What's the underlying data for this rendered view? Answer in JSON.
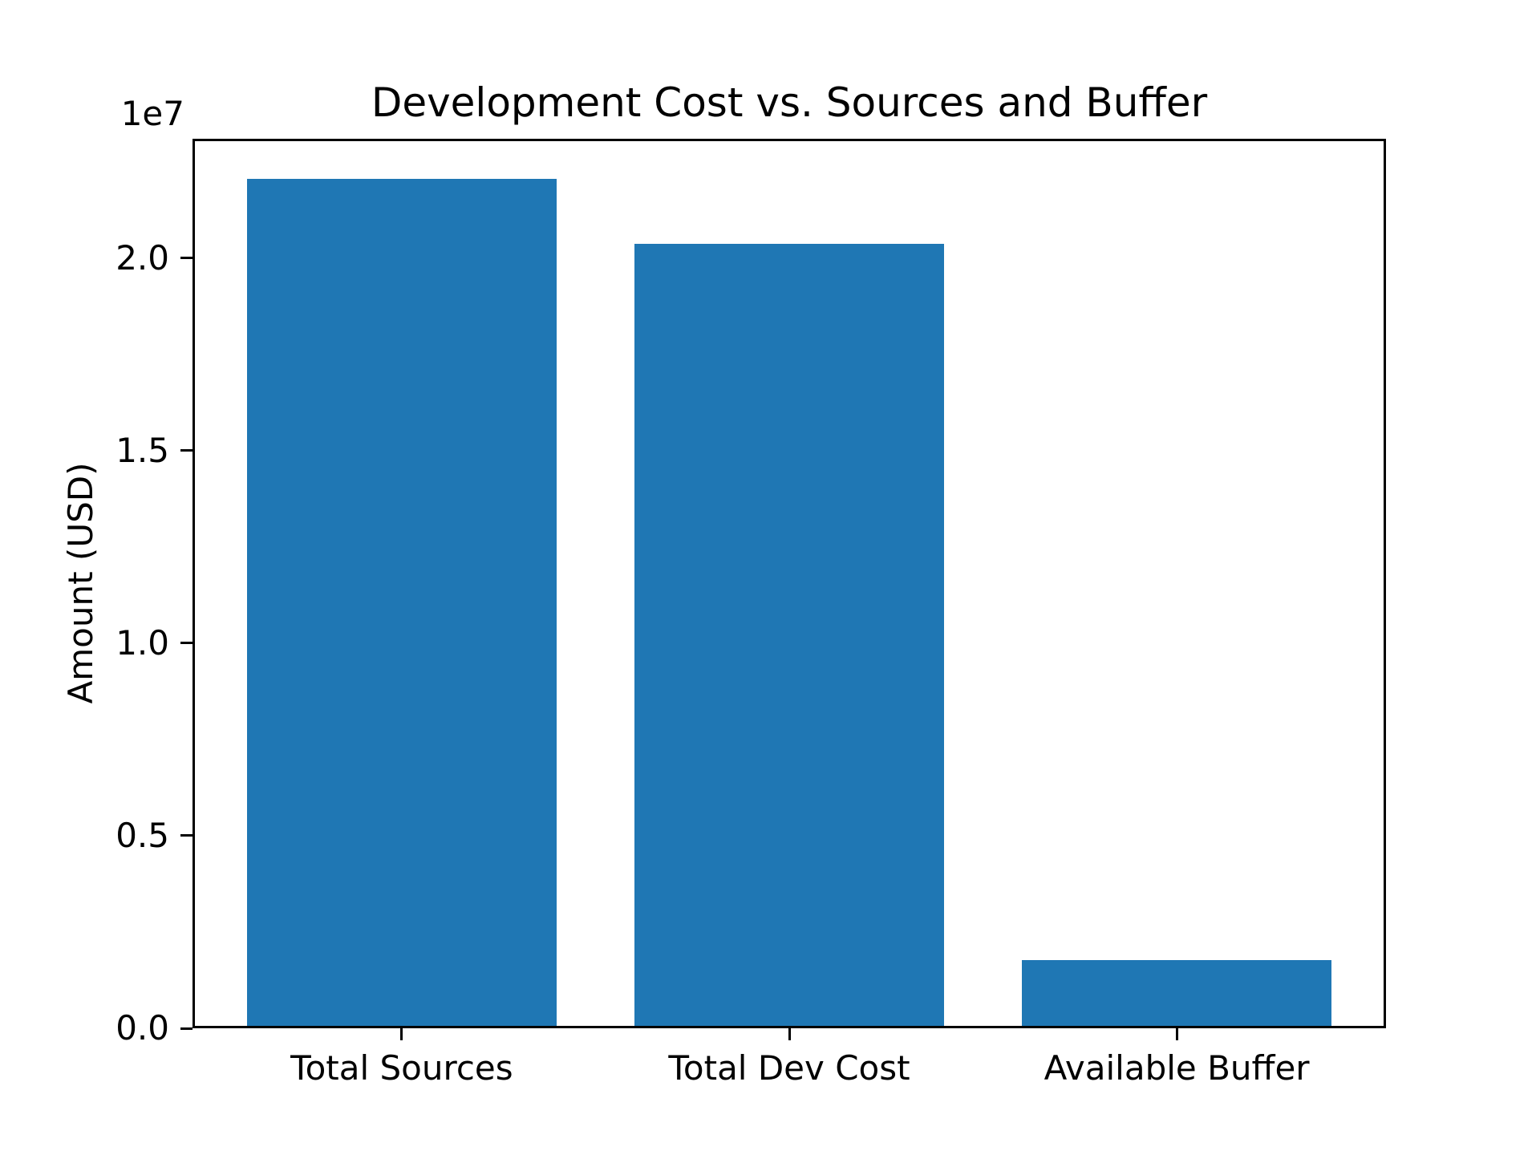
{
  "figure": {
    "background_color": "#ffffff",
    "axis_color": "#000000"
  },
  "chart_data": {
    "type": "bar",
    "title": "Development Cost vs. Sources and Buffer",
    "categories": [
      "Total Sources",
      "Total Dev Cost",
      "Available Buffer"
    ],
    "values": [
      22000000,
      20300000,
      1700000
    ],
    "xlabel": "",
    "ylabel": "Amount (USD)",
    "ylim": [
      0,
      23100000
    ],
    "yticks": [
      0,
      5000000,
      10000000,
      15000000,
      20000000
    ],
    "ytick_labels": [
      "0.0",
      "0.5",
      "1.0",
      "1.5",
      "2.0"
    ],
    "offset_text": "1e7",
    "bar_color": "#1f77b4",
    "bar_width_fraction": 0.8,
    "grid": false,
    "legend_position": "none"
  }
}
